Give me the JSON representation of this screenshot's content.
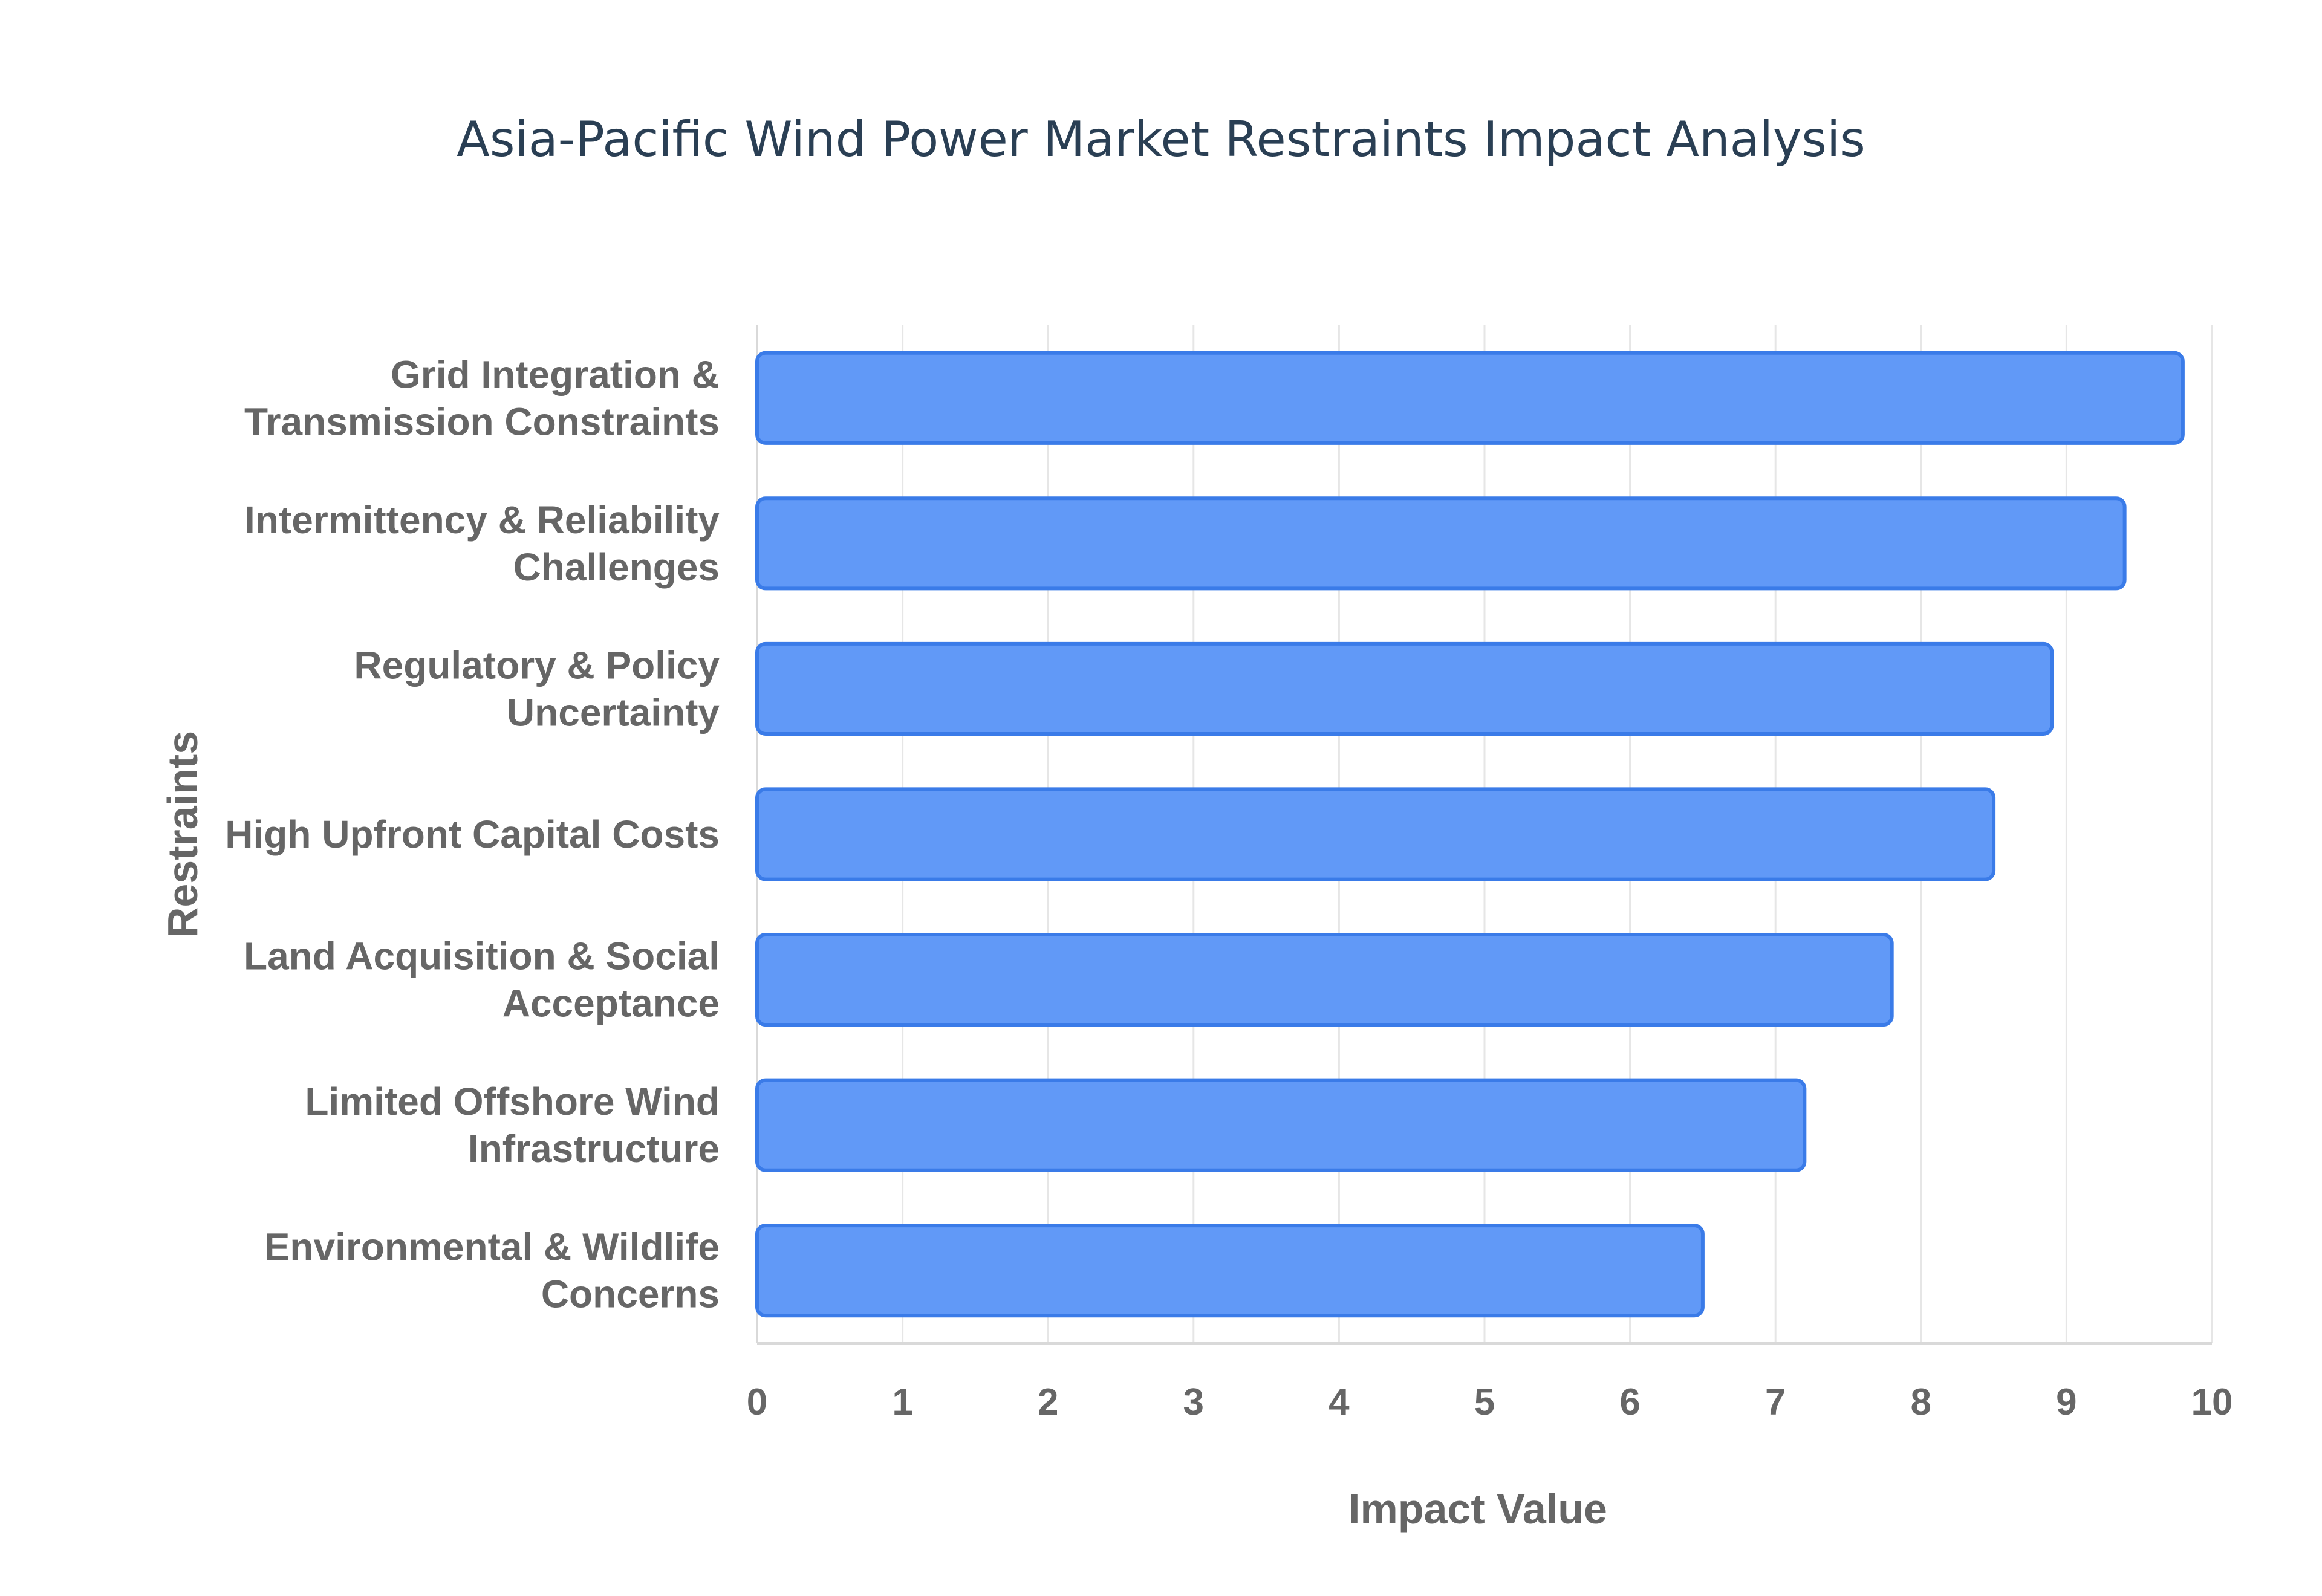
{
  "chart_data": {
    "type": "bar",
    "orientation": "horizontal",
    "title": "Asia-Pacific Wind Power Market Restraints Impact Analysis",
    "xlabel": "Impact Value",
    "ylabel": "Restraints",
    "xlim": [
      0,
      10
    ],
    "xticks": [
      0,
      1,
      2,
      3,
      4,
      5,
      6,
      7,
      8,
      9,
      10
    ],
    "grid": true,
    "categories": [
      [
        "Grid Integration &",
        "Transmission Constraints"
      ],
      [
        "Intermittency & Reliability",
        "Challenges"
      ],
      [
        "Regulatory & Policy",
        "Uncertainty"
      ],
      [
        "High Upfront Capital Costs"
      ],
      [
        "Land Acquisition & Social",
        "Acceptance"
      ],
      [
        "Limited Offshore Wind",
        "Infrastructure"
      ],
      [
        "Environmental & Wildlife",
        "Concerns"
      ]
    ],
    "values": [
      9.8,
      9.4,
      8.9,
      8.5,
      7.8,
      7.2,
      6.5
    ],
    "bar_fill": "#6199f7",
    "bar_stroke": "#3a7be8"
  }
}
